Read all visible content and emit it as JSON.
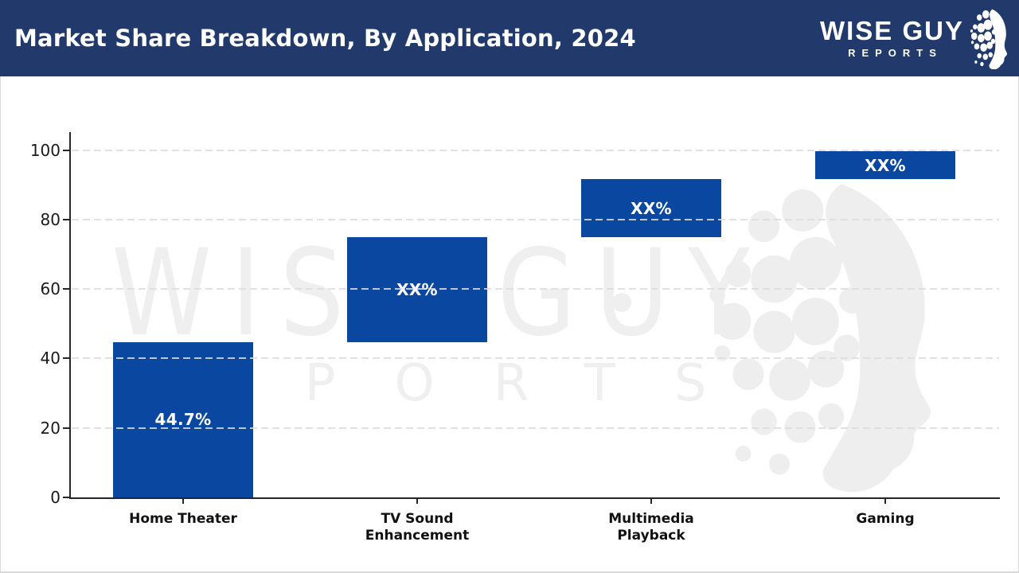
{
  "header": {
    "title": "Market Share Breakdown, By Application, 2024",
    "logo": {
      "name_top": "WISE GUY",
      "name_bottom": "REPORTS"
    }
  },
  "watermark": {
    "big_text": "WISE GUY",
    "sub_text": "REPORTS"
  },
  "chart_data": {
    "type": "bar",
    "variant": "waterfall",
    "title": "Market Share Breakdown, By Application, 2024",
    "unit": "%",
    "categories": [
      "Home Theater",
      "TV Sound Enhancement",
      "Multimedia Playback",
      "Gaming"
    ],
    "category_display": [
      "Home Theater",
      "TV Sound\nEnhancement",
      "Multimedia\nPlayback",
      "Gaming"
    ],
    "bars": [
      {
        "category": "Home Theater",
        "from": 0,
        "to": 44.7,
        "label": "44.7%"
      },
      {
        "category": "TV Sound Enhancement",
        "from": 44.7,
        "to": 74.9,
        "label": "XX%"
      },
      {
        "category": "Multimedia Playback",
        "from": 74.9,
        "to": 91.6,
        "label": "XX%"
      },
      {
        "category": "Gaming",
        "from": 91.6,
        "to": 99.6,
        "label": "XX%"
      }
    ],
    "yticks": [
      0,
      20,
      40,
      60,
      80,
      100
    ],
    "ylim": [
      0,
      105
    ],
    "grid": {
      "axis": "y",
      "style": "dashed",
      "color": "#dcdcdc"
    },
    "legend": "none",
    "colors": {
      "bar": "#0A47A0",
      "bar_label": "#ffffff",
      "axis": "#262626",
      "header_bg": "#21396B",
      "watermark": "#efefef"
    }
  }
}
